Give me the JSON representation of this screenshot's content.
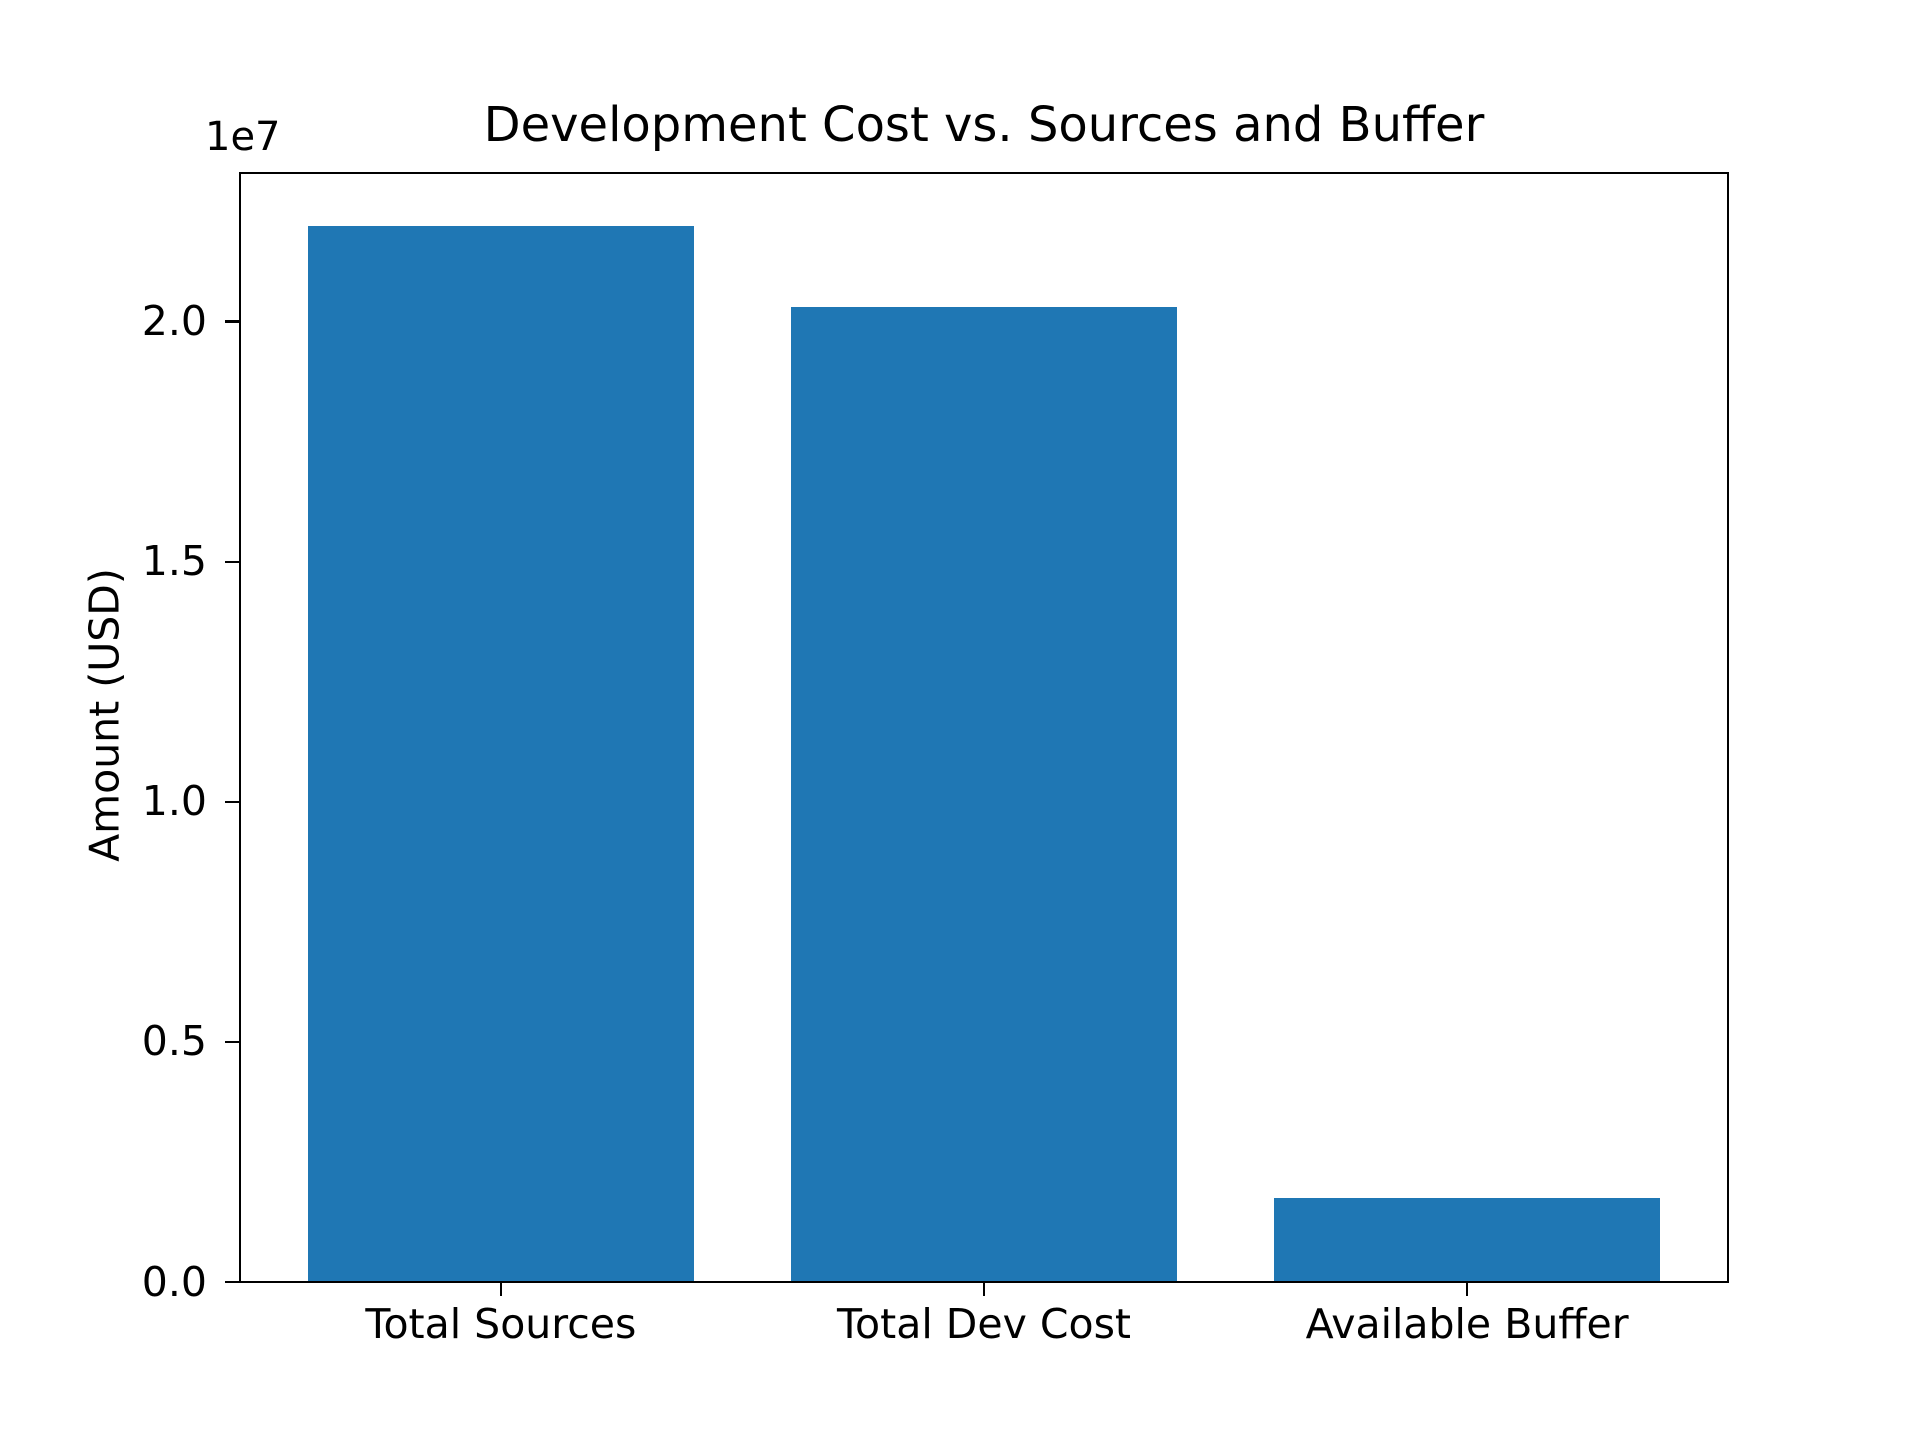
{
  "chart_data": {
    "type": "bar",
    "title": "Development Cost vs. Sources and Buffer",
    "xlabel": "",
    "ylabel": "Amount (USD)",
    "offset_text": "1e7",
    "categories": [
      "Total Sources",
      "Total Dev Cost",
      "Available Buffer"
    ],
    "values": [
      22000000,
      20300000,
      1750000
    ],
    "bar_color": "#1f77b4",
    "text_color": "#000000",
    "background_color": "#ffffff",
    "ylim": [
      0,
      23100000
    ],
    "xlim_units": [
      -0.54,
      2.54
    ],
    "bar_width_units": 0.8,
    "yticks": [
      0,
      5000000,
      10000000,
      15000000,
      20000000
    ],
    "ytick_labels": [
      "0.0",
      "0.5",
      "1.0",
      "1.5",
      "2.0"
    ],
    "grid": false,
    "legend": null
  }
}
